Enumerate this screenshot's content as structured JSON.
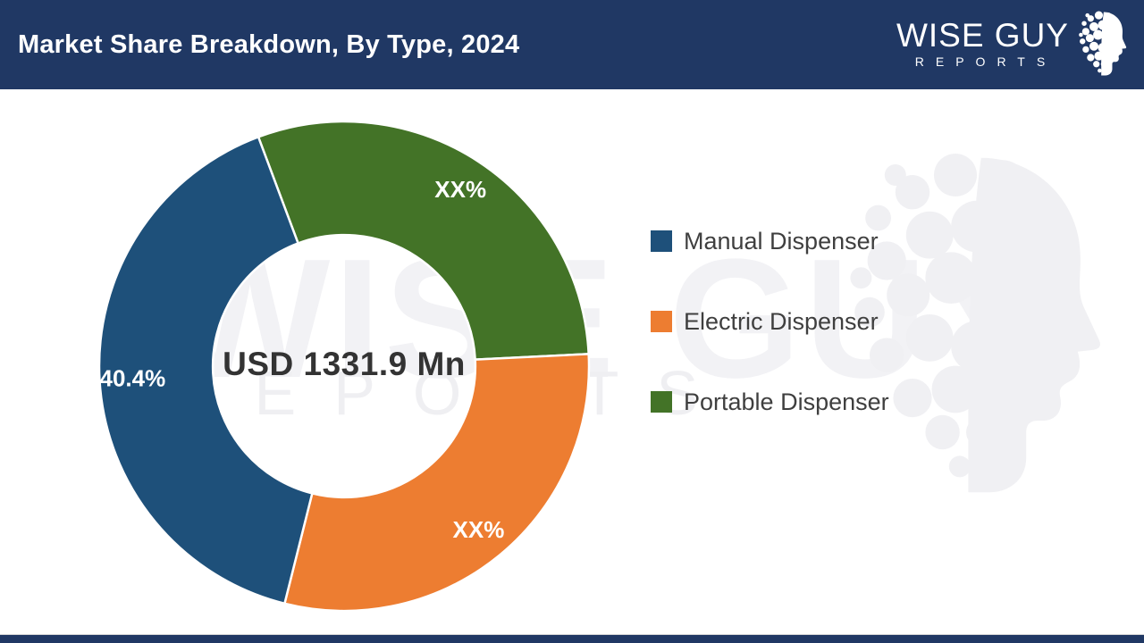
{
  "header": {
    "title": "Market Share Breakdown, By Type, 2024",
    "logo": {
      "name": "WISE GUY",
      "tagline": "REPORTS"
    }
  },
  "chart_data": {
    "type": "pie",
    "subtype": "donut",
    "title": "Market Share Breakdown, By Type, 2024",
    "center_label": "USD 1331.9 Mn",
    "total_value": "USD 1331.9 Mn",
    "start_angle_deg": -20.5,
    "donut_hole_ratio": 0.536,
    "legend_position": "right",
    "series": [
      {
        "name": "Manual Dispenser",
        "share_pct": 40.4,
        "display_label": "40.4%",
        "color": "#1E507A"
      },
      {
        "name": "Electric Dispenser",
        "share_pct": 29.7,
        "display_label": "XX%",
        "color": "#ED7D31"
      },
      {
        "name": "Portable Dispenser",
        "share_pct": 29.9,
        "display_label": "XX%",
        "color": "#437327"
      }
    ],
    "draw_order": [
      2,
      1,
      0
    ]
  },
  "watermark": {
    "name": "WISE GUY",
    "tagline": "REPORTS"
  },
  "colors": {
    "header_bg": "#203864",
    "footer_bar": "#203864",
    "title_text": "#FFFFFF",
    "center_text": "#333333",
    "legend_text": "#3F3F3F",
    "slice_label_text": "#FFFFFF",
    "watermark": "#F2F2F5"
  }
}
